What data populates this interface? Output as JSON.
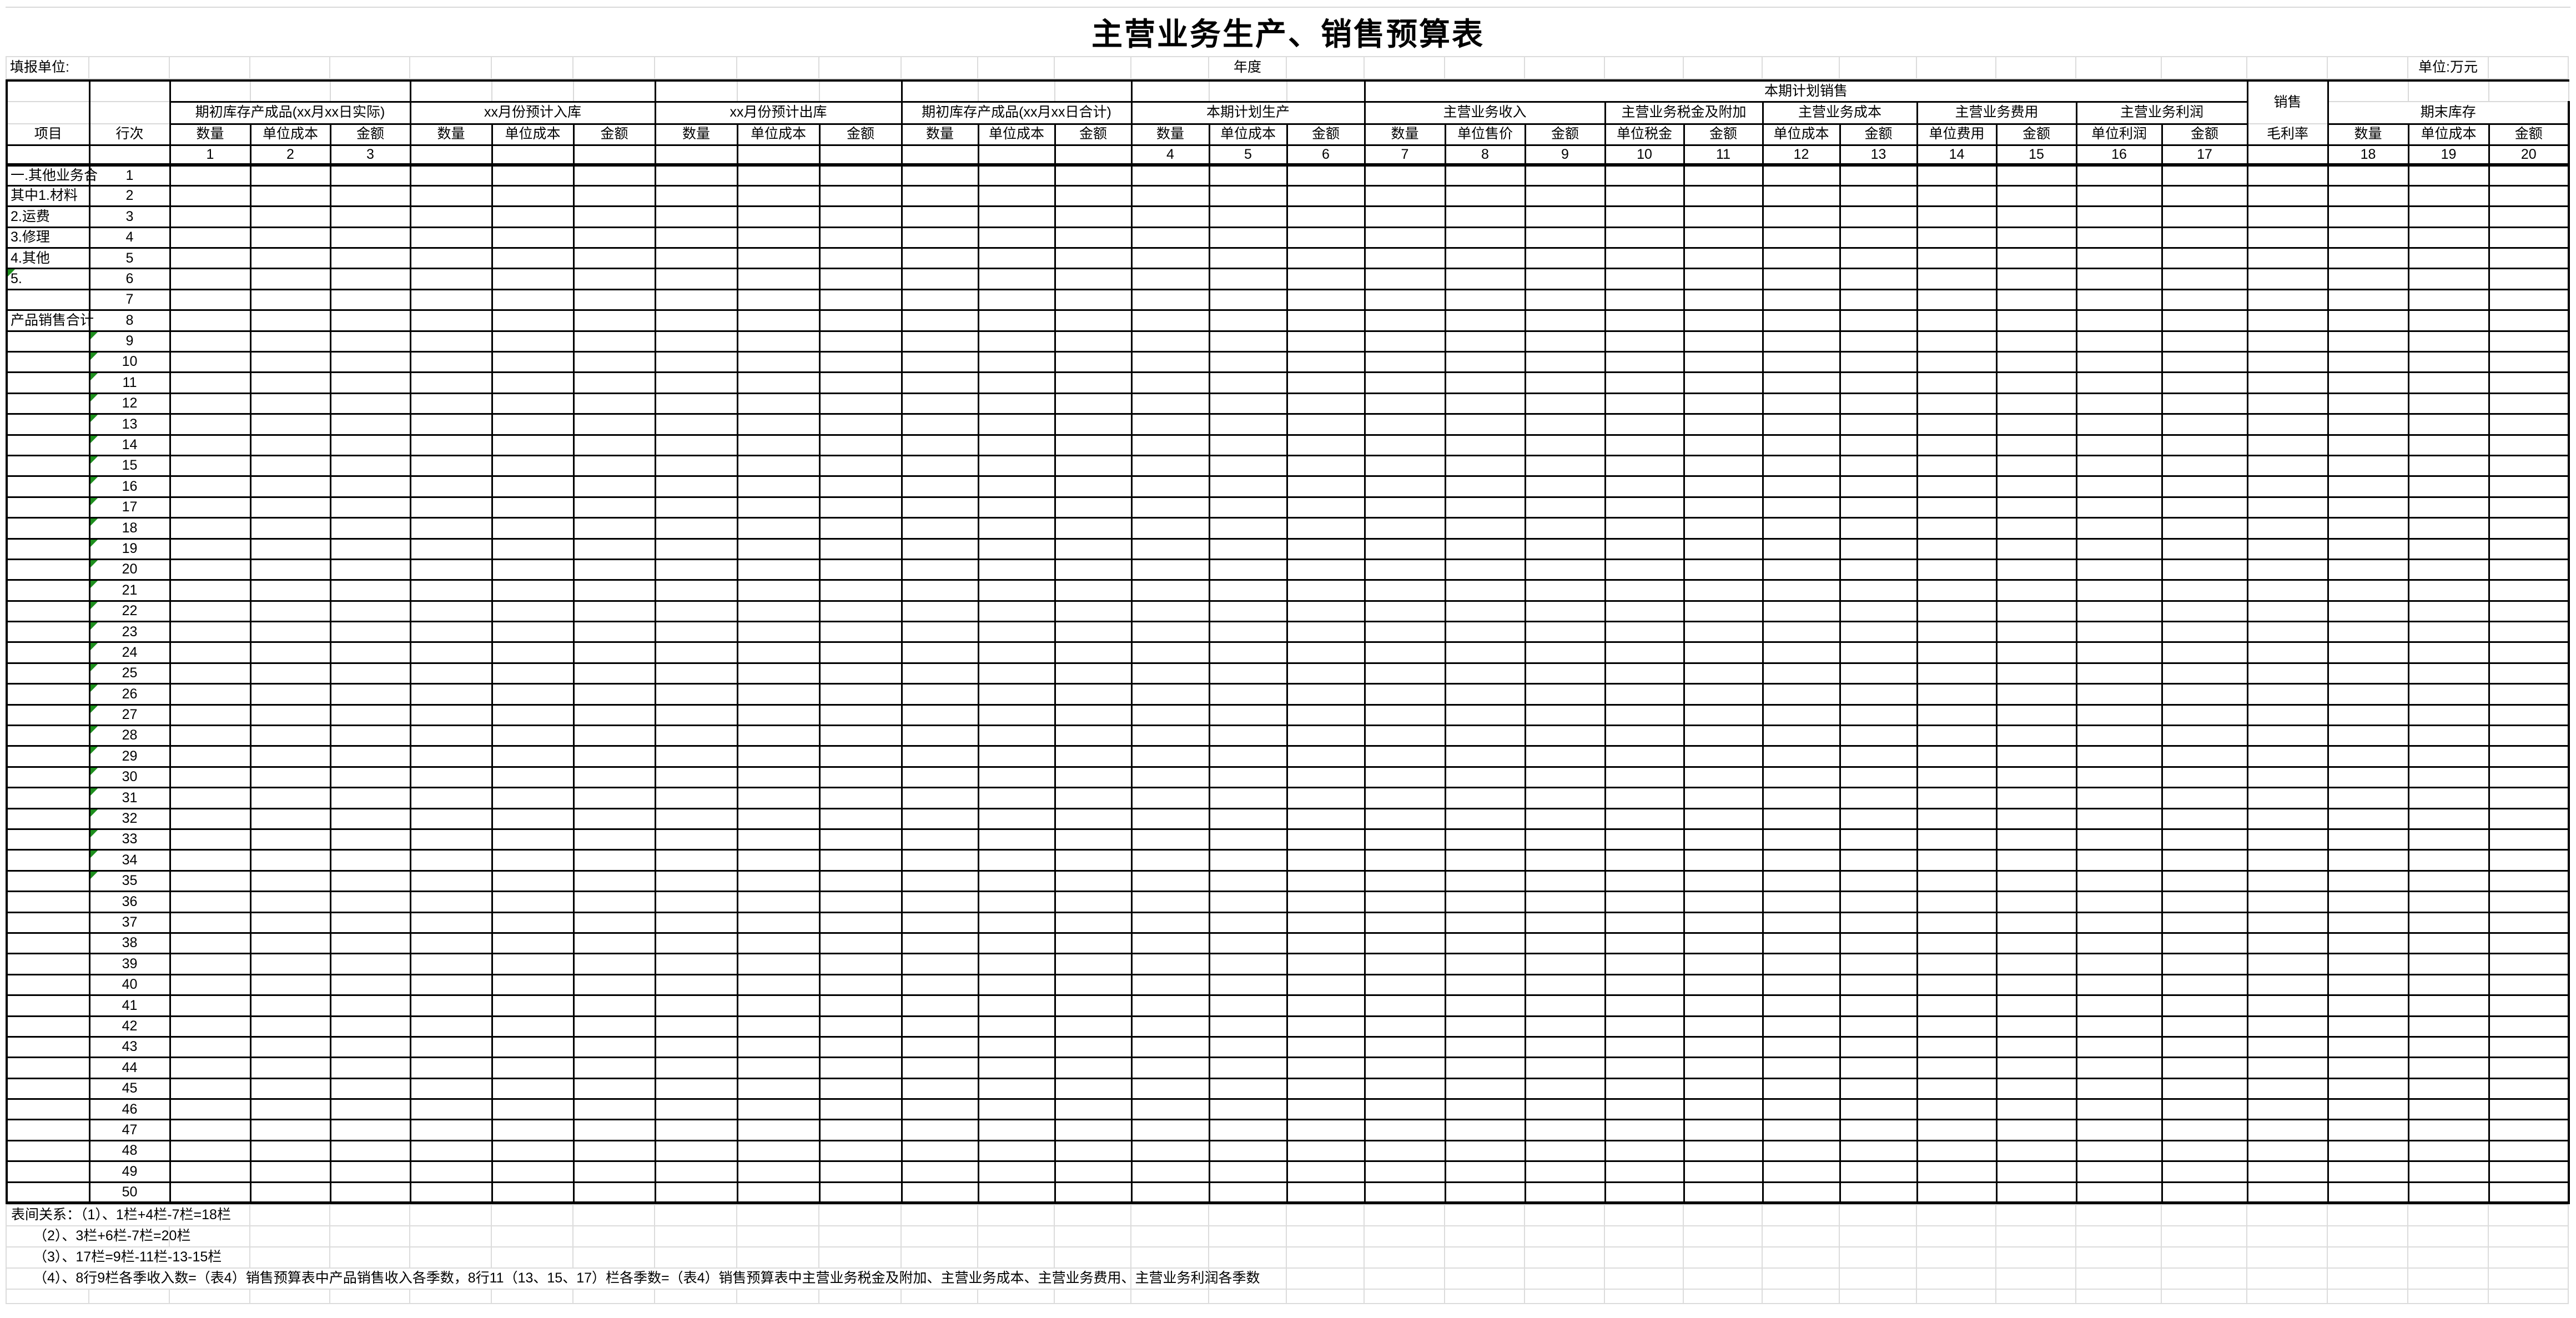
{
  "title": "主营业务生产、销售预算表",
  "meta": {
    "reporting_unit": "填报单位:",
    "year": "年度",
    "unit": "单位:万元"
  },
  "header": {
    "item_col": "项目",
    "row_col": "行次",
    "plan_sales_span": "本期计划销售",
    "sales_col": {
      "top": "销售",
      "bottom": "毛利率"
    },
    "groups": [
      {
        "label": "期初库存产成品(xx月xx日实际)",
        "cols": [
          "数量",
          "单位成本",
          "金额"
        ],
        "nums": [
          "1",
          "2",
          "3"
        ]
      },
      {
        "label": "xx月份预计入库",
        "cols": [
          "数量",
          "单位成本",
          "金额"
        ],
        "nums": [
          "",
          "",
          ""
        ]
      },
      {
        "label": "xx月份预计出库",
        "cols": [
          "数量",
          "单位成本",
          "金额"
        ],
        "nums": [
          "",
          "",
          ""
        ]
      },
      {
        "label": "期初库存产成品(xx月xx日合计)",
        "cols": [
          "数量",
          "单位成本",
          "金额"
        ],
        "nums": [
          "",
          "",
          ""
        ]
      },
      {
        "label": "本期计划生产",
        "cols": [
          "数量",
          "单位成本",
          "金额"
        ],
        "nums": [
          "4",
          "5",
          "6"
        ]
      },
      {
        "label": "主营业务收入",
        "cols": [
          "数量",
          "单位售价",
          "金额"
        ],
        "nums": [
          "7",
          "8",
          "9"
        ]
      },
      {
        "label": "主营业务税金及附加",
        "cols": [
          "单位税金",
          "金额"
        ],
        "nums": [
          "10",
          "11"
        ]
      },
      {
        "label": "主营业务成本",
        "cols": [
          "单位成本",
          "金额"
        ],
        "nums": [
          "12",
          "13"
        ]
      },
      {
        "label": "主营业务费用",
        "cols": [
          "单位费用",
          "金额"
        ],
        "nums": [
          "14",
          "15"
        ]
      },
      {
        "label": "主营业务利润",
        "cols": [
          "单位利润",
          "金额"
        ],
        "nums": [
          "16",
          "17"
        ]
      },
      {
        "label": "期末库存",
        "cols": [
          "数量",
          "单位成本",
          "金额"
        ],
        "nums": [
          "18",
          "19",
          "20"
        ]
      }
    ]
  },
  "rows": [
    {
      "no": "1",
      "label": "一.其他业务合"
    },
    {
      "no": "2",
      "label": "其中1.材料"
    },
    {
      "no": "3",
      "label": "2.运费"
    },
    {
      "no": "4",
      "label": "3.修理"
    },
    {
      "no": "5",
      "label": "4.其他"
    },
    {
      "no": "6",
      "label": "5.",
      "flag_label": true
    },
    {
      "no": "7",
      "label": ""
    },
    {
      "no": "8",
      "label": "产品销售合计"
    },
    {
      "no": "9",
      "label": "",
      "flag_no": true
    },
    {
      "no": "10",
      "label": "",
      "flag_no": true
    },
    {
      "no": "11",
      "label": "",
      "flag_no": true
    },
    {
      "no": "12",
      "label": "",
      "flag_no": true
    },
    {
      "no": "13",
      "label": "",
      "flag_no": true
    },
    {
      "no": "14",
      "label": "",
      "flag_no": true
    },
    {
      "no": "15",
      "label": "",
      "flag_no": true
    },
    {
      "no": "16",
      "label": "",
      "flag_no": true
    },
    {
      "no": "17",
      "label": "",
      "flag_no": true
    },
    {
      "no": "18",
      "label": "",
      "flag_no": true
    },
    {
      "no": "19",
      "label": "",
      "flag_no": true
    },
    {
      "no": "20",
      "label": "",
      "flag_no": true
    },
    {
      "no": "21",
      "label": "",
      "flag_no": true
    },
    {
      "no": "22",
      "label": "",
      "flag_no": true
    },
    {
      "no": "23",
      "label": "",
      "flag_no": true
    },
    {
      "no": "24",
      "label": "",
      "flag_no": true
    },
    {
      "no": "25",
      "label": "",
      "flag_no": true
    },
    {
      "no": "26",
      "label": "",
      "flag_no": true
    },
    {
      "no": "27",
      "label": "",
      "flag_no": true
    },
    {
      "no": "28",
      "label": "",
      "flag_no": true
    },
    {
      "no": "29",
      "label": "",
      "flag_no": true
    },
    {
      "no": "30",
      "label": "",
      "flag_no": true
    },
    {
      "no": "31",
      "label": "",
      "flag_no": true
    },
    {
      "no": "32",
      "label": "",
      "flag_no": true
    },
    {
      "no": "33",
      "label": "",
      "flag_no": true
    },
    {
      "no": "34",
      "label": "",
      "flag_no": true
    },
    {
      "no": "35",
      "label": "",
      "flag_no": true
    },
    {
      "no": "36",
      "label": ""
    },
    {
      "no": "37",
      "label": ""
    },
    {
      "no": "38",
      "label": ""
    },
    {
      "no": "39",
      "label": ""
    },
    {
      "no": "40",
      "label": ""
    },
    {
      "no": "41",
      "label": ""
    },
    {
      "no": "42",
      "label": ""
    },
    {
      "no": "43",
      "label": ""
    },
    {
      "no": "44",
      "label": ""
    },
    {
      "no": "45",
      "label": ""
    },
    {
      "no": "46",
      "label": ""
    },
    {
      "no": "47",
      "label": ""
    },
    {
      "no": "48",
      "label": ""
    },
    {
      "no": "49",
      "label": ""
    },
    {
      "no": "50",
      "label": ""
    }
  ],
  "notes": [
    "表间关系：（1）、1栏+4栏-7栏=18栏",
    "（2）、3栏+6栏-7栏=20栏",
    "（3）、17栏=9栏-11栏-13-15栏",
    "（4）、8行9栏各季收入数=（表4）销售预算表中产品销售收入各季数，8行11（13、15、17）栏各季数=（表4）销售预算表中主营业务税金及附加、主营业务成本、主营业务费用、主营业务利润各季数"
  ],
  "colors": {
    "border_black": "#000000",
    "gridline_gray": "#d9d9d9",
    "flag_green": "#1e8f1e"
  }
}
